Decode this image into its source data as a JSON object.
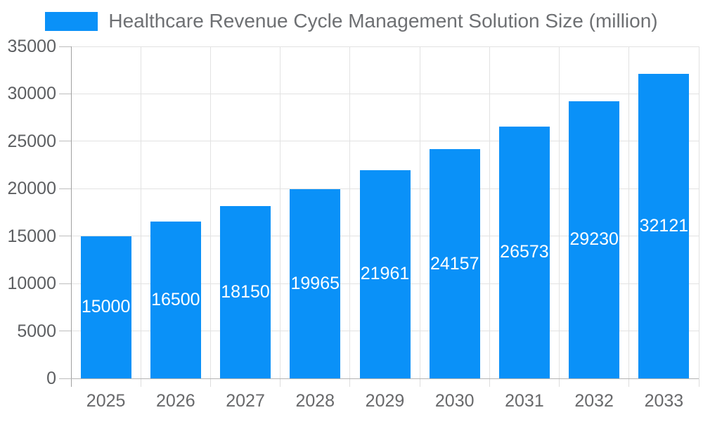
{
  "legend": {
    "label": "Healthcare Revenue Cycle Management Solution Size (million)"
  },
  "chart_data": {
    "type": "bar",
    "title": "Healthcare Revenue Cycle Management Solution Size (million)",
    "series_name": "Healthcare Revenue Cycle Management Solution Size (million)",
    "categories": [
      "2025",
      "2026",
      "2027",
      "2028",
      "2029",
      "2030",
      "2031",
      "2032",
      "2033"
    ],
    "values": [
      15000,
      16500,
      18150,
      19965,
      21961,
      24157,
      26573,
      29230,
      32121
    ],
    "value_labels": [
      "15000",
      "16500",
      "18150",
      "19965",
      "21961",
      "24157",
      "26573",
      "29230",
      "32121"
    ],
    "xlabel": "",
    "ylabel": "",
    "ylim": [
      0,
      35000
    ],
    "y_ticks": [
      0,
      5000,
      10000,
      15000,
      20000,
      25000,
      30000,
      35000
    ],
    "grid": true,
    "legend_position": "top",
    "value_label_position": "inside-center"
  },
  "colors": {
    "bar": "#0A91F8",
    "grid": "#E2E2E2",
    "y_axis": "#A0A0A0",
    "x_axis": "#B3B3B3",
    "y_tick": "#BDBDBD",
    "x_tick": "#DDDDDD",
    "y_tick_label": "#5D5F62",
    "x_tick_label": "#68696B",
    "legend_text": "#6E7073",
    "value_label": "#FFFFFF",
    "background": "#FFFFFF"
  }
}
